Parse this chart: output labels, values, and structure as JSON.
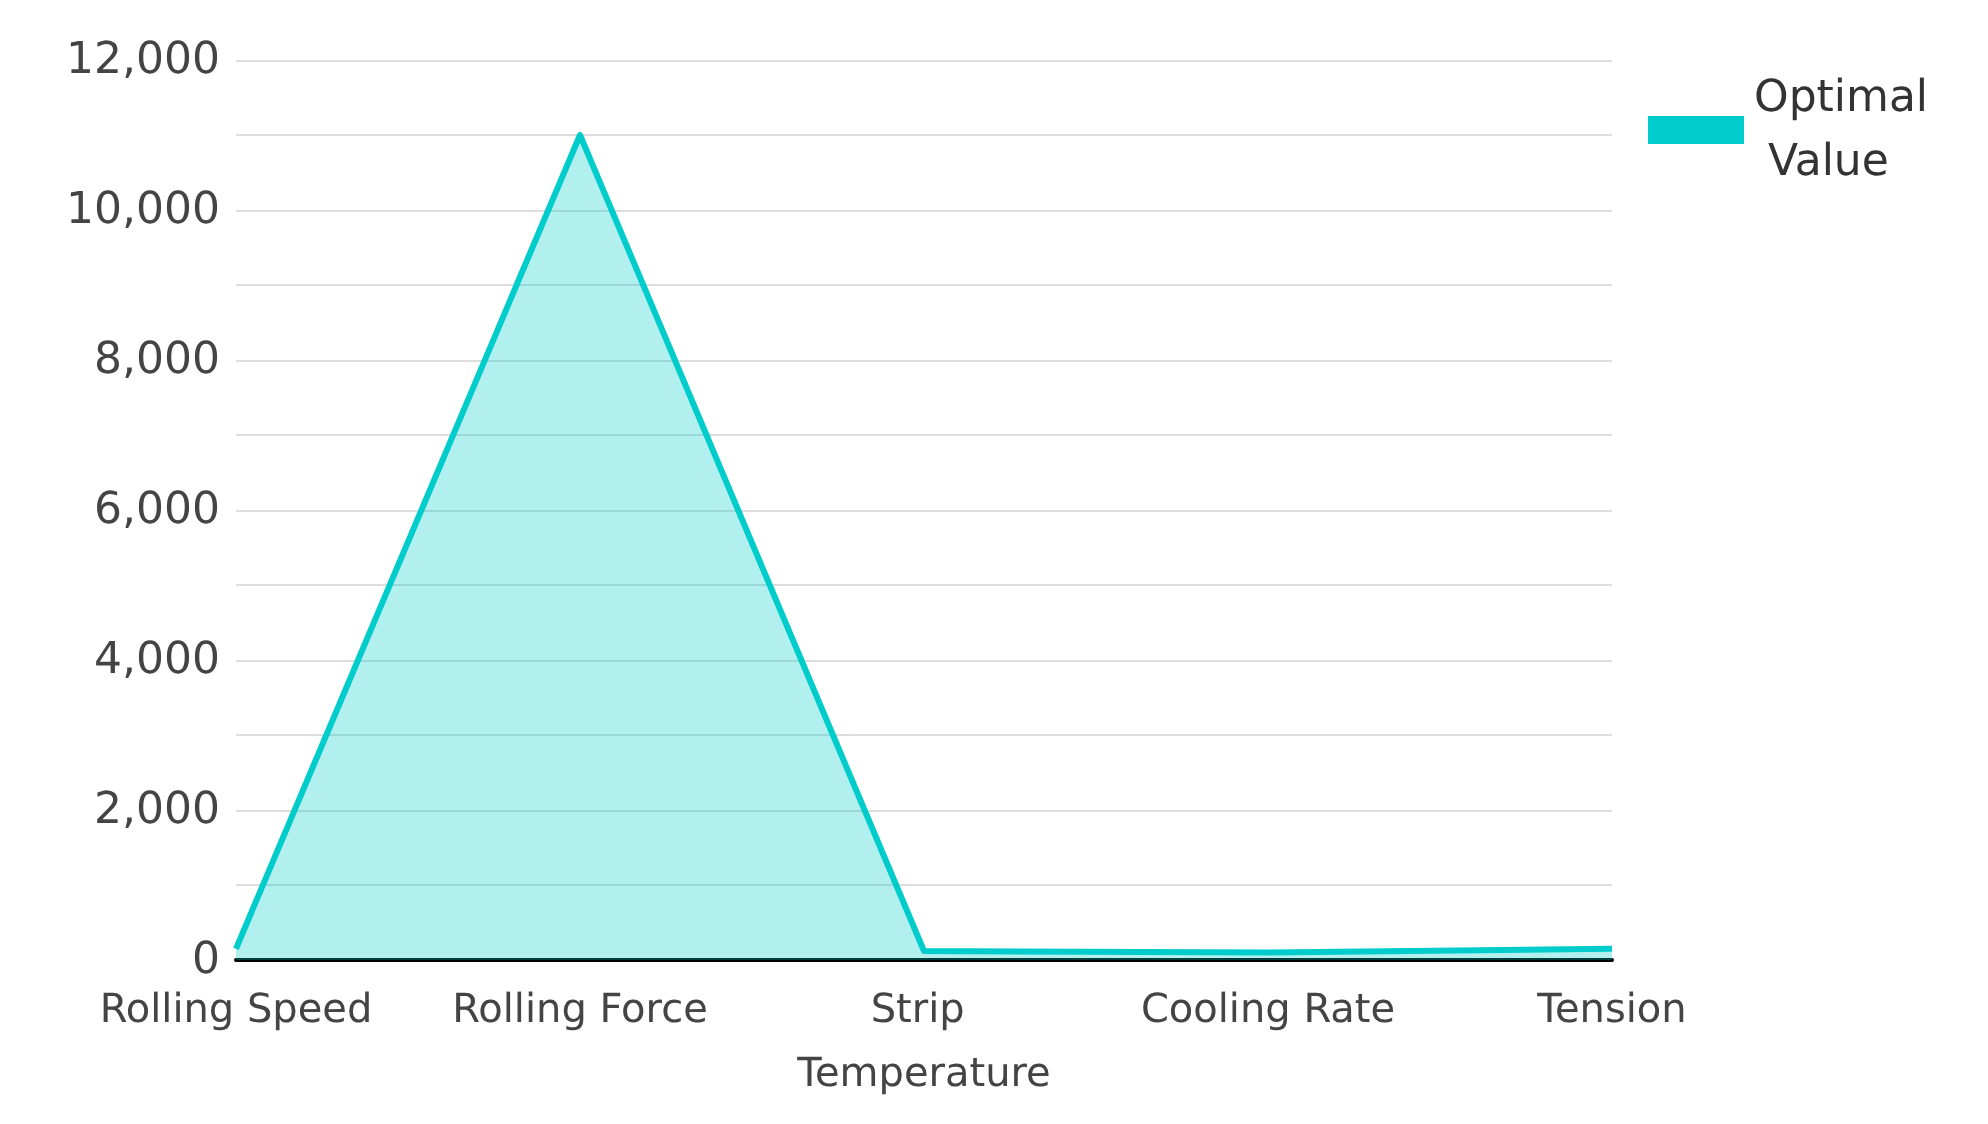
{
  "chart_data": {
    "type": "area",
    "categories": [
      "Rolling Speed",
      "Rolling Force",
      "Strip Temperature",
      "Cooling Rate",
      "Tension"
    ],
    "series": [
      {
        "name": "Optimal Value",
        "color": "#00cccc",
        "values": [
          150,
          11000,
          120,
          100,
          150
        ]
      }
    ],
    "ylim": [
      0,
      12000
    ],
    "yticks": [
      0,
      {
        "value": 1000,
        "label": null
      },
      {
        "value": 2000,
        "label": "2,000"
      },
      {
        "value": 3000,
        "label": null
      },
      {
        "value": 4000,
        "label": "4,000"
      },
      {
        "value": 5000,
        "label": null
      },
      {
        "value": 6000,
        "label": "6,000"
      },
      {
        "value": 7000,
        "label": null
      },
      {
        "value": 8000,
        "label": "8,000"
      },
      {
        "value": 9000,
        "label": null
      },
      {
        "value": 10000,
        "label": "10,000"
      },
      {
        "value": 11000,
        "label": null
      },
      {
        "value": 12000,
        "label": "12,000"
      }
    ],
    "grid": "y",
    "legend": "top right"
  }
}
